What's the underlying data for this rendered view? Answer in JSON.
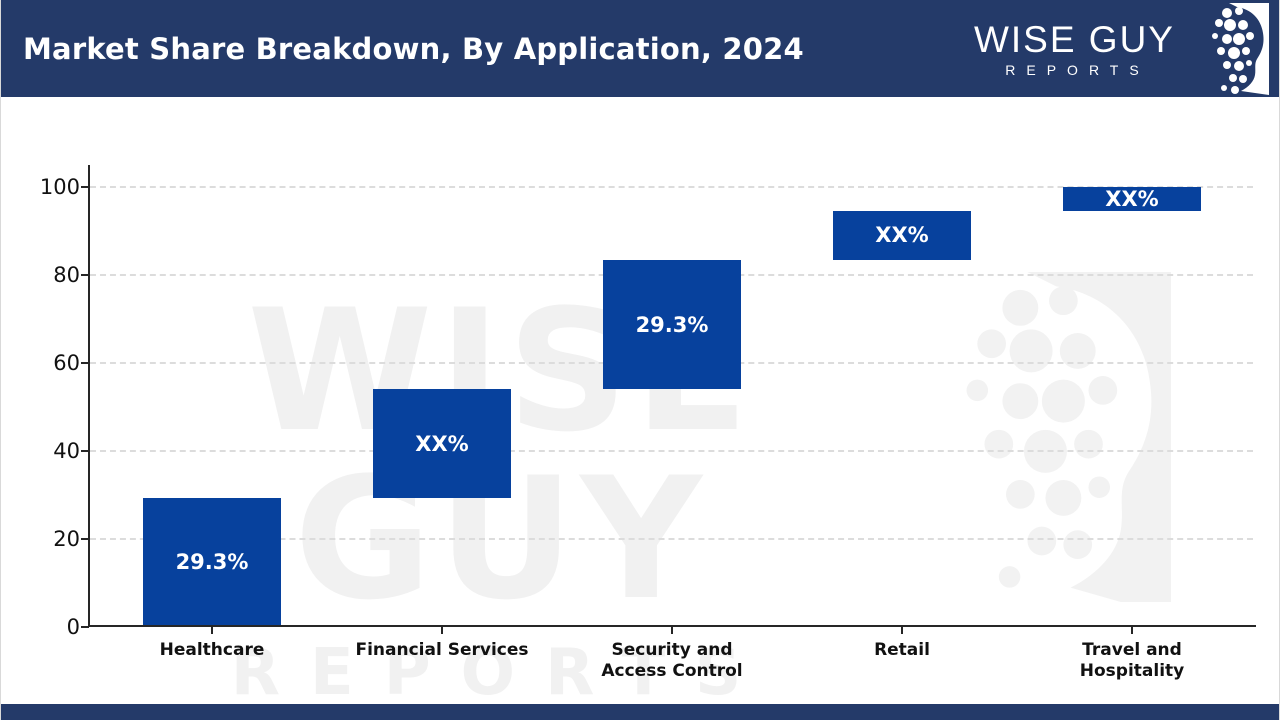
{
  "header": {
    "title": "Market Share Breakdown, By Application, 2024",
    "logo": {
      "line1": "WISE GUY",
      "line2": "REPORTS"
    },
    "bg_color": "#243a69"
  },
  "watermark": {
    "line1": "WISE GUY",
    "line2": "REPORTS"
  },
  "footer": {
    "bg_color": "#243a69"
  },
  "chart_data": {
    "type": "bar",
    "subtype": "floating-waterfall",
    "title": "Market Share Breakdown, By Application, 2024",
    "categories": [
      "Healthcare",
      "Financial Services",
      "Security and\nAccess Control",
      "Retail",
      "Travel and\nHospitality"
    ],
    "segments": [
      {
        "category": "Healthcare",
        "start": 0,
        "end": 29.3,
        "label": "29.3%"
      },
      {
        "category": "Financial Services",
        "start": 29.3,
        "end": 54.0,
        "label": "XX%"
      },
      {
        "category": "Security and Access Control",
        "start": 54.0,
        "end": 83.3,
        "label": "29.3%"
      },
      {
        "category": "Retail",
        "start": 83.3,
        "end": 94.5,
        "label": "XX%"
      },
      {
        "category": "Travel and Hospitality",
        "start": 94.5,
        "end": 100,
        "label": "XX%"
      }
    ],
    "xlabel": "",
    "ylabel": "",
    "yticks": [
      0,
      20,
      40,
      60,
      80,
      100
    ],
    "ylim": [
      0,
      105
    ],
    "grid": "horizontal-dashed",
    "legend": "none",
    "bar_color": "#07419d",
    "bar_label_color": "#ffffff",
    "axis_color": "#262626",
    "grid_color": "#dcdcdc",
    "tick_label_color": "#111111"
  }
}
